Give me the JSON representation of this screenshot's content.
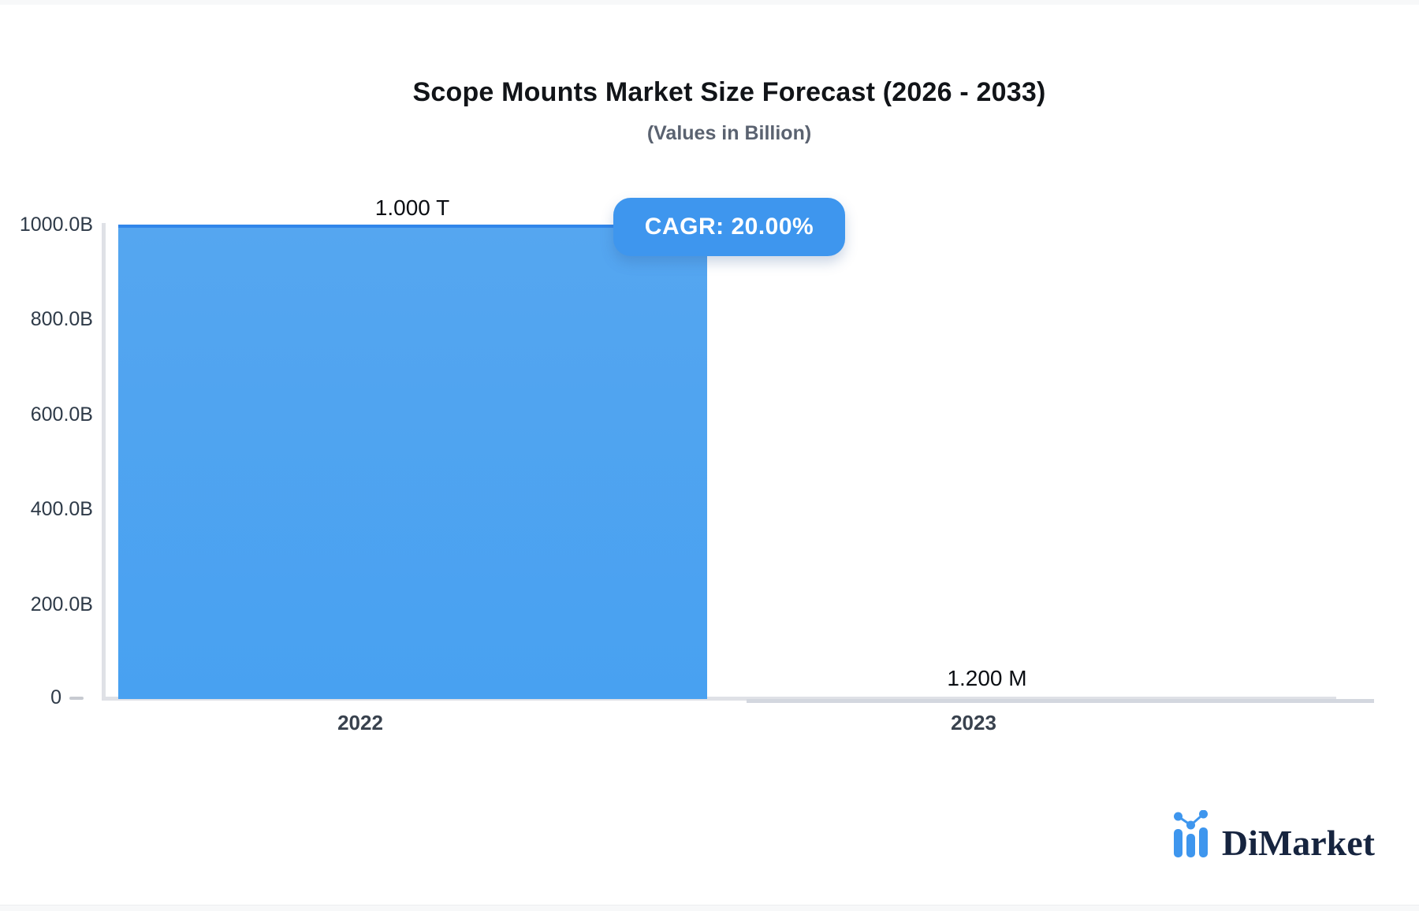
{
  "chart_data": {
    "type": "bar",
    "title": "Scope Mounts Market Size Forecast (2026 - 2033)",
    "subtitle": "(Values in Billion)",
    "categories": [
      "2022",
      "2023"
    ],
    "values_billion": [
      1000,
      0.0012
    ],
    "value_labels": [
      "1.000 T",
      "1.200 M"
    ],
    "y_axis": {
      "ticks": [
        "1000.0B",
        "800.0B",
        "600.0B",
        "400.0B",
        "200.0B",
        "0"
      ],
      "range_billion": [
        0,
        1000
      ],
      "grid": false
    },
    "legend": "none",
    "annotations": [
      {
        "label": "CAGR: 20.00%"
      }
    ]
  },
  "branding": {
    "logo_text": "DiMarket"
  },
  "colors": {
    "bar_blue": "#4aa1f0",
    "bar_blue_top_edge": "#3186ea",
    "badge_blue": "#3e96ee",
    "bar_2023_gray": "#d3d7df",
    "axis_line": "#dfe1e6",
    "title_text": "#111418",
    "subtitle_text": "#5a6270",
    "axis_label_text": "#2e3a48",
    "x_label_text": "#39424e",
    "logo_navy": "#16243f",
    "logo_blue": "#3e96ee"
  }
}
